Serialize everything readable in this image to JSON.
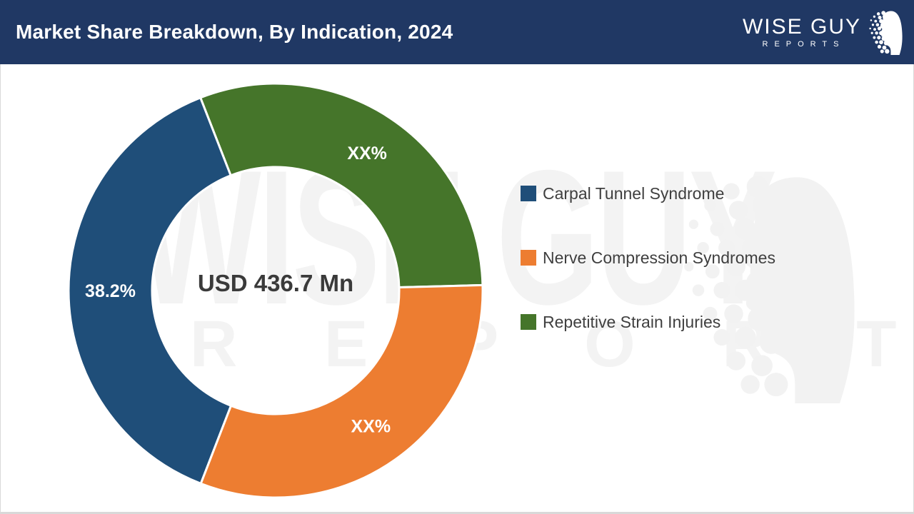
{
  "header": {
    "title": "Market Share Breakdown, By Indication, 2024",
    "logo": {
      "line1": "WISE GUY",
      "line2": "REPORTS"
    }
  },
  "watermark": {
    "line1": "WISE GUY",
    "line2": "R E P O R T S"
  },
  "chart_data": {
    "type": "pie",
    "subtype": "donut",
    "title": "Market Share Breakdown, By Indication, 2024",
    "center_label": "USD 436.7 Mn",
    "start_angle_deg": 1.5,
    "direction": "counterclockwise",
    "segments": [
      {
        "name": "Repetitive Strain Injuries",
        "value_pct": 30.5,
        "display_label": "XX%",
        "color": "#45752A"
      },
      {
        "name": "Carpal Tunnel Syndrome",
        "value_pct": 38.2,
        "display_label": "38.2%",
        "color": "#1F4E79"
      },
      {
        "name": "Nerve Compression Syndromes",
        "value_pct": 31.3,
        "display_label": "XX%",
        "color": "#ED7D31"
      }
    ],
    "legend": {
      "position": "right",
      "items": [
        {
          "label": "Carpal Tunnel Syndrome",
          "color": "#1F4E79"
        },
        {
          "label": "Nerve Compression Syndromes",
          "color": "#ED7D31"
        },
        {
          "label": "Repetitive Strain Injuries",
          "color": "#45752A"
        }
      ]
    }
  }
}
